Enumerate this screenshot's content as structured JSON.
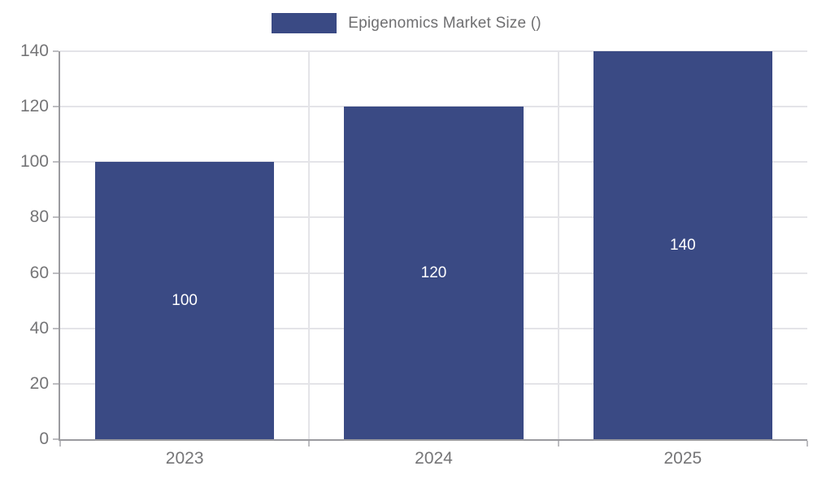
{
  "legend": {
    "label": "Epigenomics Market Size ()"
  },
  "chart_data": {
    "type": "bar",
    "title": "Epigenomics Market Size ()",
    "categories": [
      "2023",
      "2024",
      "2025"
    ],
    "values": [
      100,
      120,
      140
    ],
    "bar_labels": [
      "100",
      "120",
      "140"
    ],
    "xlabel": "",
    "ylabel": "",
    "ylim": [
      0,
      140
    ],
    "yticks": [
      0,
      20,
      40,
      60,
      80,
      100,
      120,
      140
    ],
    "grid": true,
    "legend_position": "top-center",
    "bar_width_fraction": 0.72,
    "colors": {
      "bar": "#3a4a84",
      "grid": "#e4e4e8",
      "axis": "#9b9b9f",
      "tick_mark": "#bdbdc1",
      "tick_text": "#757577",
      "legend_text": "#6f6f71",
      "value_label": "#ffffff"
    }
  }
}
